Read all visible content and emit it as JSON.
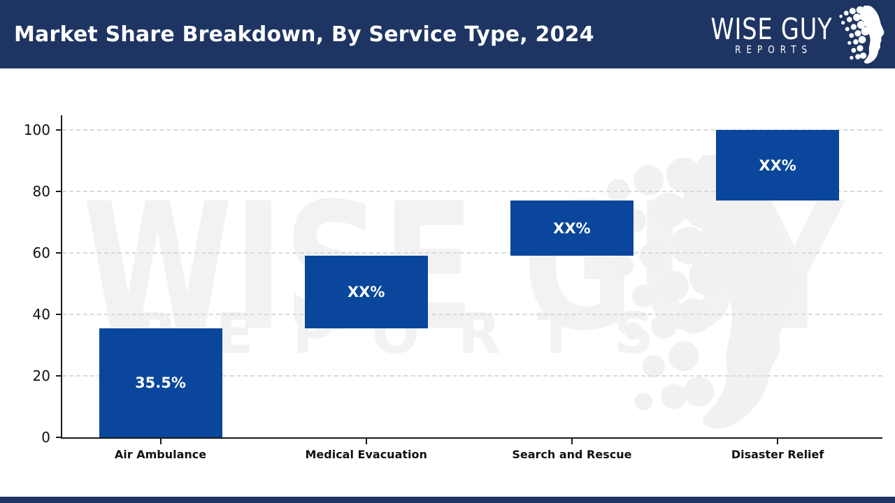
{
  "header": {
    "title": "Market Share Breakdown, By Service Type, 2024",
    "bg_color": "#1e3563",
    "logo": {
      "wordmark": "WISE GUY",
      "subtext": "REPORTS"
    }
  },
  "watermark": {
    "wordmark": "WISE GUY",
    "subtext": "REPORTS"
  },
  "chart_data": {
    "type": "bar",
    "subtype": "waterfall",
    "title": "Market Share Breakdown, By Service Type, 2024",
    "categories": [
      "Air Ambulance",
      "Medical Evacuation",
      "Search and Rescue",
      "Disaster Relief"
    ],
    "segments": [
      {
        "category": "Air Ambulance",
        "start": 0,
        "end": 35.5,
        "label": "35.5%"
      },
      {
        "category": "Medical Evacuation",
        "start": 35.5,
        "end": 59,
        "label": "XX%"
      },
      {
        "category": "Search and Rescue",
        "start": 59,
        "end": 77,
        "label": "XX%"
      },
      {
        "category": "Disaster Relief",
        "start": 77,
        "end": 100,
        "label": "XX%"
      }
    ],
    "yticks": [
      0,
      20,
      40,
      60,
      80,
      100
    ],
    "ylim": [
      0,
      105
    ],
    "xlabel": "",
    "ylabel": "",
    "grid": {
      "axis": "y",
      "style": "dashed",
      "color": "#d9d9d9"
    },
    "legend": "none",
    "bar_color": "#0a469b",
    "bar_label_color": "#ffffff"
  },
  "footer": {
    "bg_color": "#1e3563"
  }
}
